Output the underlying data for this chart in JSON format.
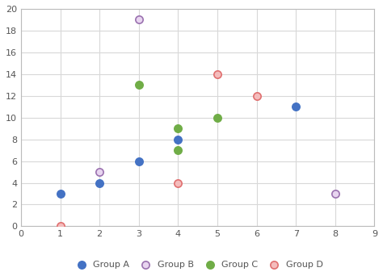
{
  "groups": {
    "Group A": {
      "x": [
        1,
        2,
        3,
        4,
        7
      ],
      "y": [
        3,
        4,
        6,
        8,
        11
      ],
      "facecolor": "#4472C4",
      "edgecolor": "#4472C4",
      "style": "filled"
    },
    "Group B": {
      "x": [
        2,
        3,
        8
      ],
      "y": [
        5,
        19,
        3
      ],
      "facecolor": "#E8D5F0",
      "edgecolor": "#9B72B0",
      "style": "open"
    },
    "Group C": {
      "x": [
        3,
        4,
        4,
        5
      ],
      "y": [
        13,
        9,
        7,
        10
      ],
      "facecolor": "#70AD47",
      "edgecolor": "#70AD47",
      "style": "filled"
    },
    "Group D": {
      "x": [
        1,
        4,
        5,
        6
      ],
      "y": [
        0,
        4,
        14,
        12
      ],
      "facecolor": "#F4BCBC",
      "edgecolor": "#E07070",
      "style": "open"
    }
  },
  "xlim": [
    0,
    9
  ],
  "ylim": [
    0,
    20
  ],
  "xticks": [
    0,
    1,
    2,
    3,
    4,
    5,
    6,
    7,
    8,
    9
  ],
  "yticks": [
    0,
    2,
    4,
    6,
    8,
    10,
    12,
    14,
    16,
    18,
    20
  ],
  "marker_size": 45,
  "background_color": "#FFFFFF",
  "grid_color": "#D8D8D8",
  "tick_color": "#555555",
  "tick_fontsize": 8,
  "legend_order": [
    "Group A",
    "Group B",
    "Group C",
    "Group D"
  ],
  "legend_fontsize": 8
}
